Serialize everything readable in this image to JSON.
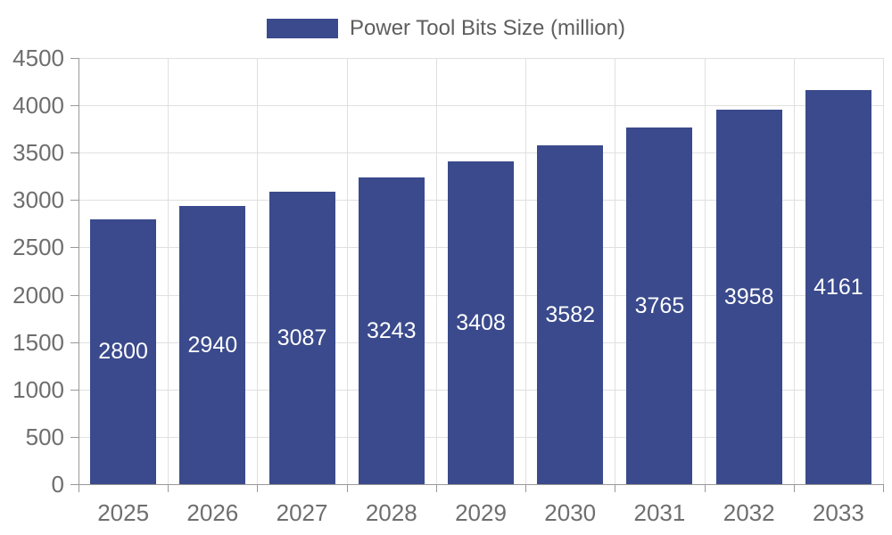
{
  "chart_data": {
    "type": "bar",
    "title": "Power Tool Bits Size (million)",
    "legend": [
      "Power Tool Bits Size (million)"
    ],
    "legend_position": "top-center",
    "categories": [
      "2025",
      "2026",
      "2027",
      "2028",
      "2029",
      "2030",
      "2031",
      "2032",
      "2033"
    ],
    "values": [
      2800,
      2940,
      3087,
      3243,
      3408,
      3582,
      3765,
      3958,
      4161
    ],
    "xlabel": "",
    "ylabel": "",
    "ylim": [
      0,
      4500
    ],
    "yticks": [
      0,
      500,
      1000,
      1500,
      2000,
      2500,
      3000,
      3500,
      4000,
      4500
    ],
    "grid": true,
    "value_label_position": "inside-center",
    "colors": {
      "bar": "#3A4A8C",
      "value_label": "#FFFFFF",
      "axis_line": "#999999",
      "grid_line": "#E0E0E0",
      "tick_label": "#6E6E6E",
      "legend_text": "#5E5E5E",
      "background": "#FFFFFF"
    }
  }
}
